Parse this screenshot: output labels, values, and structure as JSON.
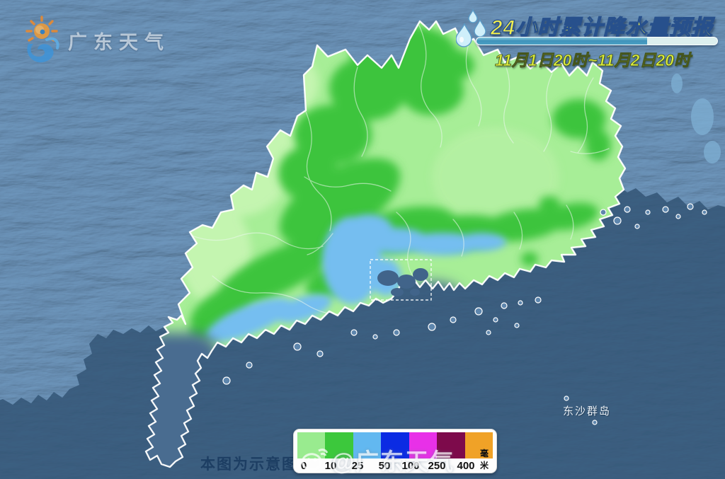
{
  "logo": {
    "text": "广东天气"
  },
  "header": {
    "title": "24小时累计降水量预报",
    "subtitle": "11月1日20时~11月2日20时",
    "divider_fill_percent": 71
  },
  "map": {
    "island_label": "东沙群岛",
    "note": "本图为示意图",
    "watermark_text": "@广东天气"
  },
  "legend": {
    "ticks": [
      "0",
      "10",
      "25",
      "50",
      "100",
      "250",
      "400"
    ],
    "unit": "毫米",
    "colors": [
      "#99EB8F",
      "#3CC83C",
      "#62B8F0",
      "#0B2BE3",
      "#E830E8",
      "#7D0A4B",
      "#F0A227"
    ]
  },
  "colors": {
    "ocean": "#3E6386",
    "terrain_land": "#7099C0",
    "rain_0_10": "#A7EE97",
    "rain_10_25": "#3CC43C",
    "rain_25_50": "#74BEF0",
    "title_text": "#F3EF4E",
    "subtitle_text": "#DCEC3E"
  }
}
